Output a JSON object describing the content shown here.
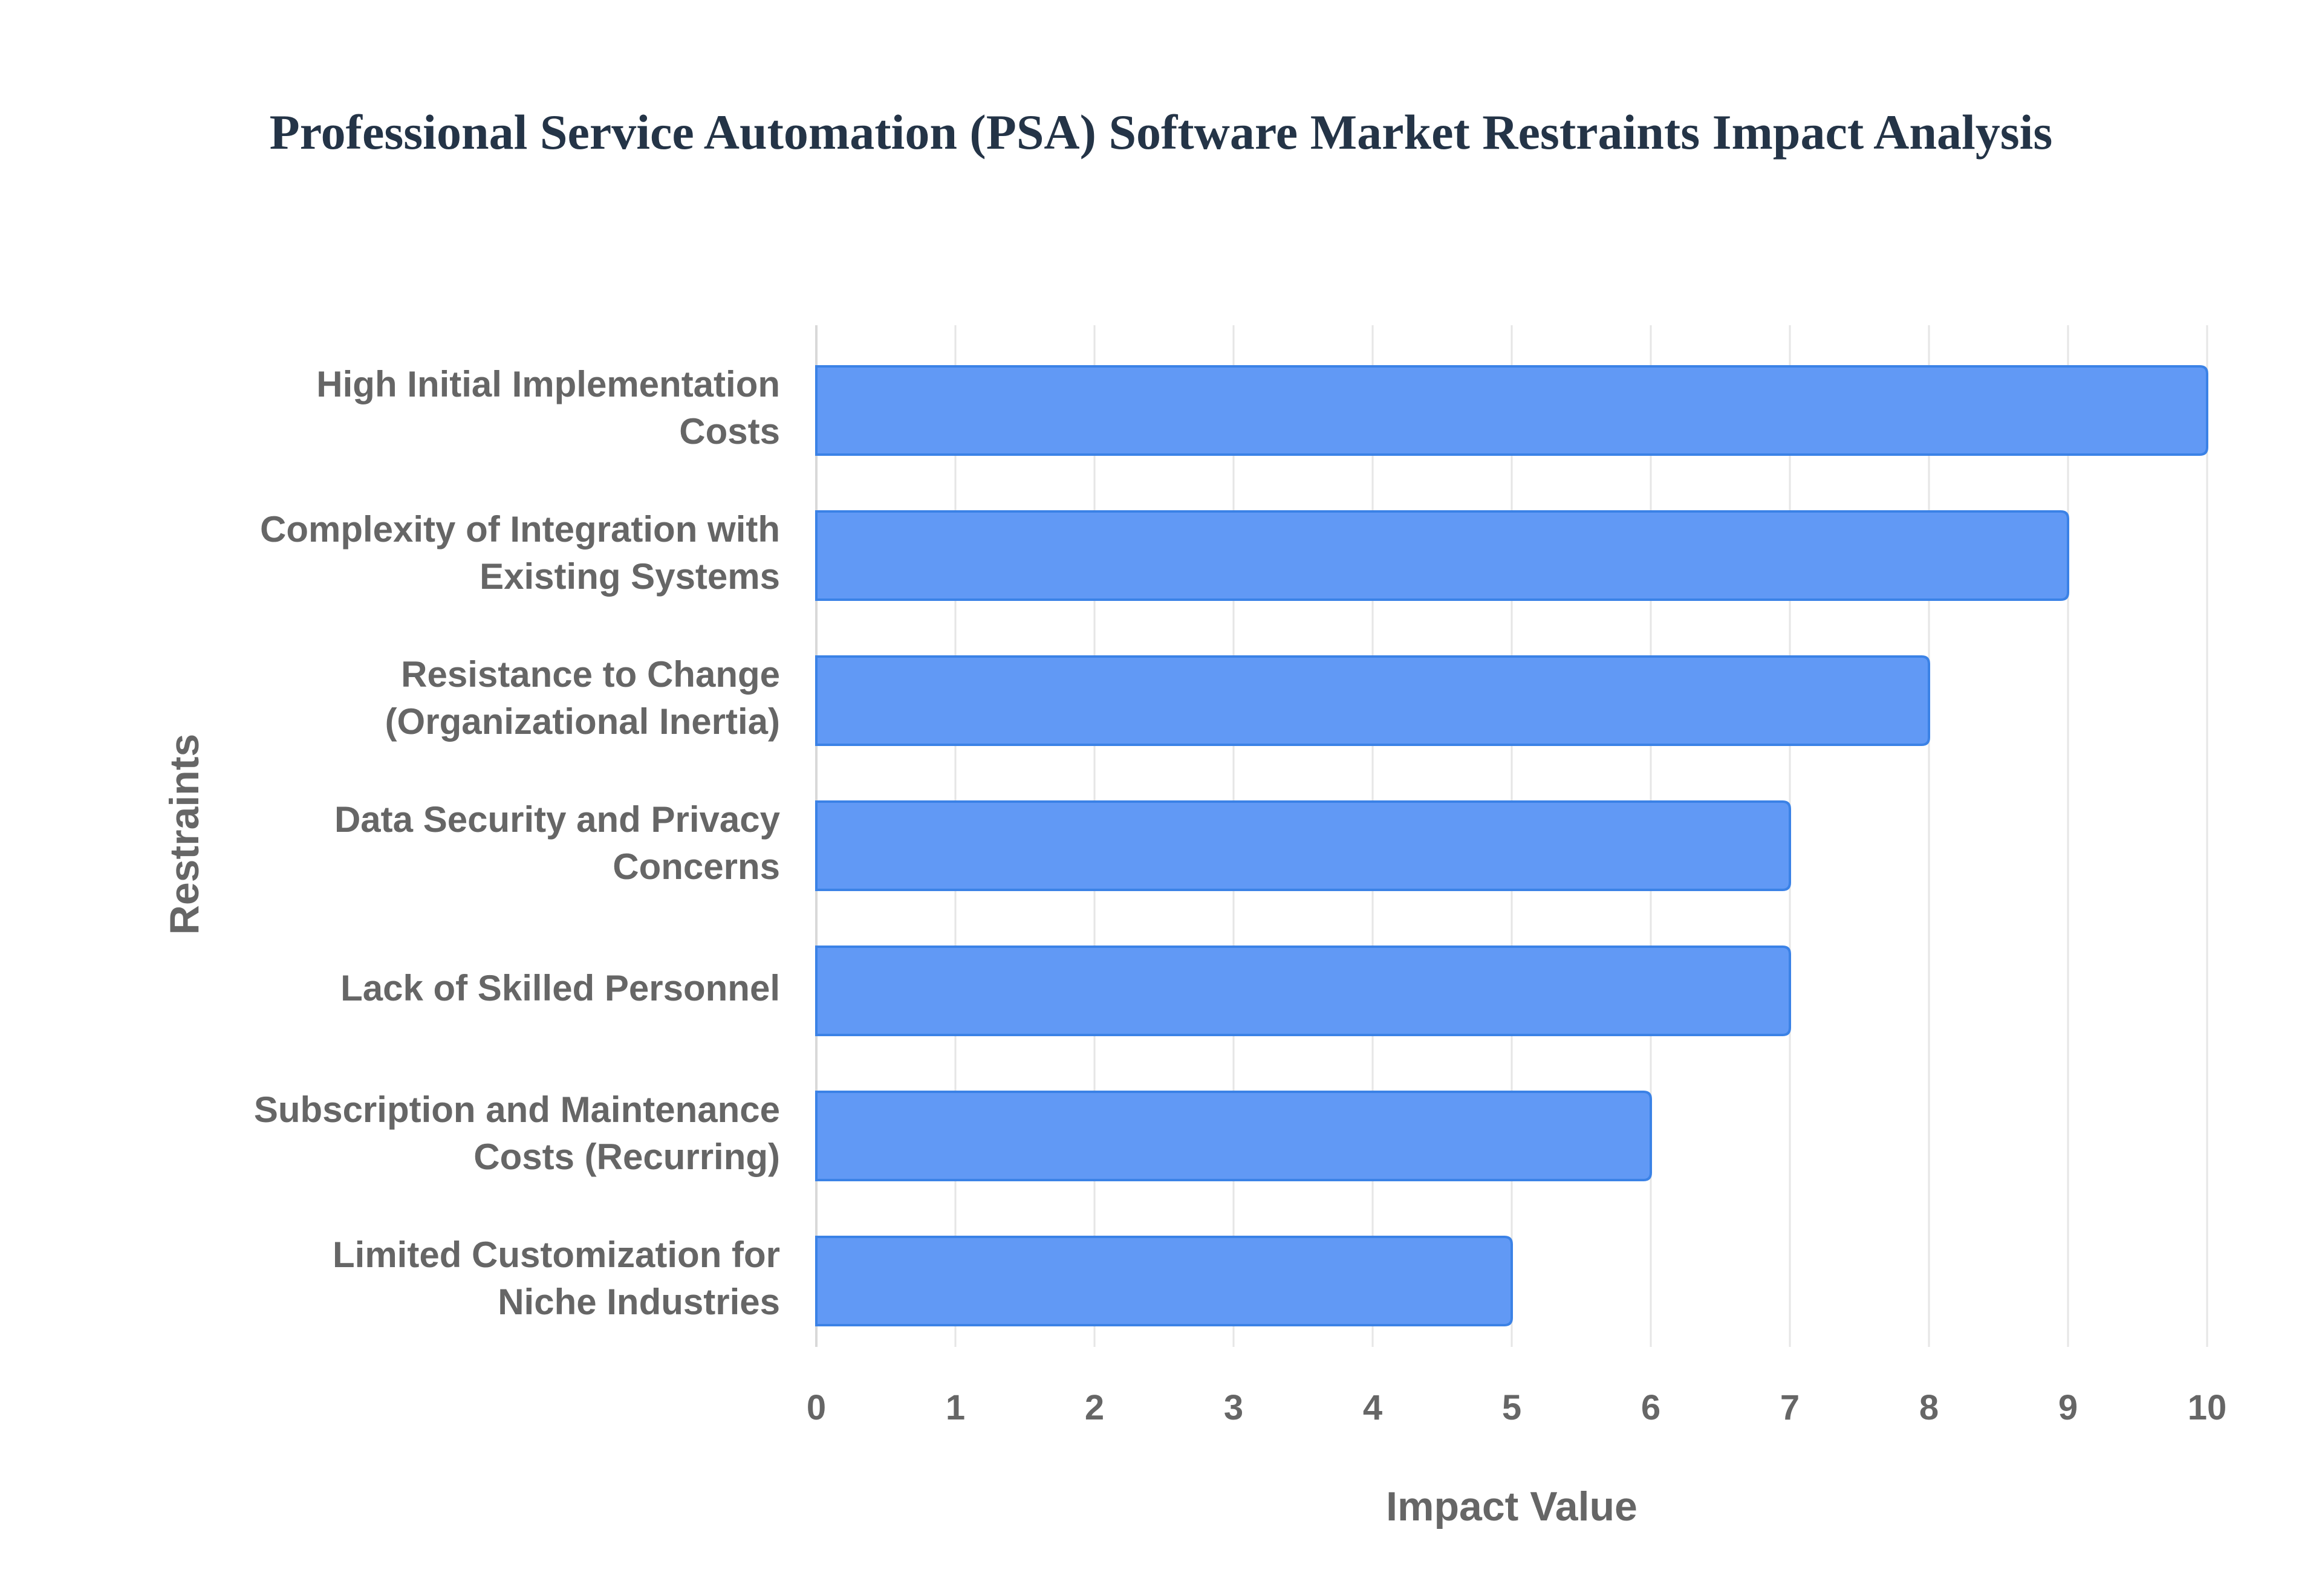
{
  "chart_data": {
    "type": "bar",
    "orientation": "horizontal",
    "title": "Professional Service Automation (PSA) Software Market Restraints Impact Analysis",
    "xlabel": "Impact Value",
    "ylabel": "Restraints",
    "categories": [
      [
        "High Initial Implementation",
        "Costs"
      ],
      [
        "Complexity of Integration with",
        "Existing Systems"
      ],
      [
        "Resistance to Change",
        "(Organizational Inertia)"
      ],
      [
        "Data Security and Privacy",
        "Concerns"
      ],
      [
        "Lack of Skilled Personnel"
      ],
      [
        "Subscription and Maintenance",
        "Costs (Recurring)"
      ],
      [
        "Limited Customization for",
        "Niche Industries"
      ]
    ],
    "values": [
      10,
      9,
      8,
      7,
      7,
      6,
      5
    ],
    "xlim": [
      0,
      10
    ],
    "xticks": [
      "0",
      "1",
      "2",
      "3",
      "4",
      "5",
      "6",
      "7",
      "8",
      "9",
      "10"
    ],
    "grid": true,
    "legend": "none",
    "colors": {
      "bar_fill": "#6199f5",
      "bar_stroke": "#3b82e6",
      "grid": "#e6e6e6",
      "text": "#666666",
      "title": "#243447"
    }
  }
}
